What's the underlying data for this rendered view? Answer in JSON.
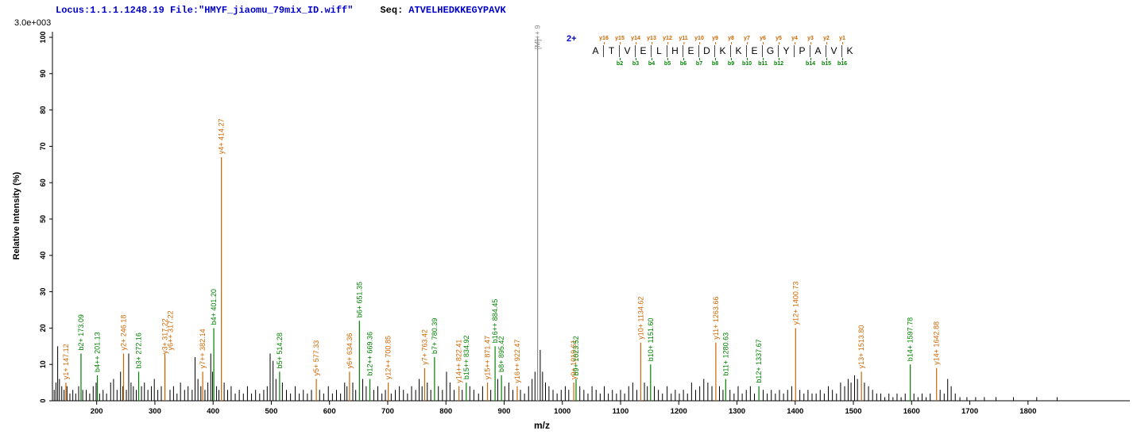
{
  "header": {
    "locus": "Locus:1.1.1.1248.19 File:\"HMYF_jiaomu_79mix_ID.wiff\"",
    "seq_label": "Seq:",
    "sequence": "ATVELHEDKKEGYPAVK",
    "max_intensity": "3.0e+003"
  },
  "peptide": {
    "charge": "2+",
    "residues": [
      "A",
      "T",
      "V",
      "E",
      "L",
      "H",
      "E",
      "D",
      "K",
      "K",
      "E",
      "G",
      "Y",
      "P",
      "A",
      "V",
      "K"
    ],
    "y_labels": [
      "y16",
      "y15",
      "y14",
      "y13",
      "y12",
      "y11",
      "y10",
      "y9",
      "y8",
      "y7",
      "y6",
      "y5",
      "y4",
      "y3",
      "y2",
      "y1"
    ],
    "b_labels": [
      "",
      "b2",
      "b3",
      "b4",
      "b5",
      "b6",
      "b7",
      "b8",
      "b9",
      "b10",
      "b11",
      "b12",
      "",
      "b14",
      "b15",
      "b16"
    ]
  },
  "chart_data": {
    "type": "bar",
    "title": "MS/MS fragment ion spectrum",
    "xlabel": "m/z",
    "ylabel": "Relative  Intensity  (%)",
    "xlim": [
      124,
      1975
    ],
    "ylim": [
      0,
      100
    ],
    "x_ticks": [
      200,
      300,
      400,
      500,
      600,
      700,
      800,
      900,
      1000,
      1100,
      1200,
      1300,
      1400,
      1500,
      1600,
      1700,
      1800
    ],
    "y_ticks": [
      0,
      10,
      20,
      30,
      40,
      50,
      60,
      70,
      80,
      90,
      100
    ],
    "legend": "none",
    "grid": false,
    "colors": {
      "y_ion": "#cc6600",
      "b_ion": "#008000",
      "precursor": "#8c8c8c",
      "unlabeled": "#000000"
    },
    "labeled_peaks": [
      {
        "mz": 147.12,
        "intensity": 5,
        "ion": "y",
        "label": "y1+ 147.12"
      },
      {
        "mz": 173.09,
        "intensity": 13,
        "ion": "b",
        "label": "b2+ 173.09"
      },
      {
        "mz": 201.13,
        "intensity": 7,
        "ion": "b",
        "label": "b4++ 201.13"
      },
      {
        "mz": 246.18,
        "intensity": 13,
        "ion": "y",
        "label": "y2+ 246.18"
      },
      {
        "mz": 272.16,
        "intensity": 8,
        "ion": "b",
        "label": "b3+ 272.16"
      },
      {
        "mz": 317.22,
        "intensity": 12,
        "ion": "y",
        "label": "y3+ 317.22"
      },
      {
        "mz": 317.22,
        "intensity": 13,
        "ion": "y",
        "label": "y6++ 317.22",
        "label_dx": 7
      },
      {
        "mz": 382.14,
        "intensity": 8,
        "ion": "y",
        "label": "y7++ 382.14"
      },
      {
        "mz": 401.2,
        "intensity": 20,
        "ion": "b",
        "label": "b4+ 401.20"
      },
      {
        "mz": 414.27,
        "intensity": 67,
        "ion": "y",
        "label": "y4+ 414.27"
      },
      {
        "mz": 514.28,
        "intensity": 8,
        "ion": "b",
        "label": "b5+ 514.28"
      },
      {
        "mz": 577.33,
        "intensity": 6,
        "ion": "y",
        "label": "y5+ 577.33"
      },
      {
        "mz": 634.36,
        "intensity": 8,
        "ion": "y",
        "label": "y6+ 634.36"
      },
      {
        "mz": 651.35,
        "intensity": 22,
        "ion": "b",
        "label": "b6+ 651.35"
      },
      {
        "mz": 669.36,
        "intensity": 6,
        "ion": "b",
        "label": "b12++ 669.36"
      },
      {
        "mz": 700.85,
        "intensity": 5,
        "ion": "y",
        "label": "y12++ 700.85"
      },
      {
        "mz": 763.42,
        "intensity": 9,
        "ion": "y",
        "label": "y7+ 763.42"
      },
      {
        "mz": 780.39,
        "intensity": 12,
        "ion": "b",
        "label": "b7+ 780.39"
      },
      {
        "mz": 822.41,
        "intensity": 4,
        "ion": "y",
        "label": "y14++ 822.41"
      },
      {
        "mz": 834.92,
        "intensity": 5,
        "ion": "b",
        "label": "b15++ 834.92"
      },
      {
        "mz": 871.47,
        "intensity": 5,
        "ion": "y",
        "label": "y15++ 871.47"
      },
      {
        "mz": 884.45,
        "intensity": 15,
        "ion": "b",
        "label": "b16++ 884.45"
      },
      {
        "mz": 895.42,
        "intensity": 7,
        "ion": "b",
        "label": "b8+ 895.42"
      },
      {
        "mz": 922.47,
        "intensity": 4,
        "ion": "y",
        "label": "y16++ 922.47"
      },
      {
        "mz": 957.5,
        "intensity": 100,
        "ion": "precursor",
        "label": "[M]++ 9"
      },
      {
        "mz": 1019.61,
        "intensity": 5,
        "ion": "y",
        "label": "y9+ 1019.61"
      },
      {
        "mz": 1023.52,
        "intensity": 6,
        "ion": "b",
        "label": "b9+ 1023.52"
      },
      {
        "mz": 1134.62,
        "intensity": 16,
        "ion": "y",
        "label": "y10+ 1134.62"
      },
      {
        "mz": 1151.6,
        "intensity": 10,
        "ion": "b",
        "label": "b10+ 1151.60"
      },
      {
        "mz": 1263.66,
        "intensity": 16,
        "ion": "y",
        "label": "y11+ 1263.66"
      },
      {
        "mz": 1280.63,
        "intensity": 6,
        "ion": "b",
        "label": "b11+ 1280.63"
      },
      {
        "mz": 1337.67,
        "intensity": 4,
        "ion": "b",
        "label": "b12+ 1337.67"
      },
      {
        "mz": 1400.73,
        "intensity": 20,
        "ion": "y",
        "label": "y12+ 1400.73"
      },
      {
        "mz": 1513.8,
        "intensity": 8,
        "ion": "y",
        "label": "y13+ 1513.80"
      },
      {
        "mz": 1597.78,
        "intensity": 10,
        "ion": "b",
        "label": "b14+ 1597.78"
      },
      {
        "mz": 1642.88,
        "intensity": 9,
        "ion": "y",
        "label": "y14+ 1642.88"
      }
    ],
    "unlabeled_peaks": [
      [
        127,
        3
      ],
      [
        130,
        5
      ],
      [
        133,
        15
      ],
      [
        136,
        6
      ],
      [
        140,
        4
      ],
      [
        144,
        3
      ],
      [
        149,
        4
      ],
      [
        154,
        2
      ],
      [
        159,
        3
      ],
      [
        164,
        2
      ],
      [
        169,
        4
      ],
      [
        176,
        3
      ],
      [
        182,
        3
      ],
      [
        188,
        2
      ],
      [
        194,
        4
      ],
      [
        199,
        5
      ],
      [
        205,
        2
      ],
      [
        211,
        3
      ],
      [
        217,
        2
      ],
      [
        224,
        5
      ],
      [
        229,
        6
      ],
      [
        235,
        3
      ],
      [
        241,
        8
      ],
      [
        245,
        4
      ],
      [
        251,
        3
      ],
      [
        255,
        13
      ],
      [
        259,
        5
      ],
      [
        263,
        4
      ],
      [
        268,
        3
      ],
      [
        277,
        4
      ],
      [
        282,
        5
      ],
      [
        288,
        3
      ],
      [
        294,
        4
      ],
      [
        299,
        6
      ],
      [
        305,
        3
      ],
      [
        311,
        4
      ],
      [
        326,
        3
      ],
      [
        332,
        4
      ],
      [
        338,
        2
      ],
      [
        344,
        5
      ],
      [
        351,
        3
      ],
      [
        357,
        4
      ],
      [
        364,
        3
      ],
      [
        369,
        12
      ],
      [
        374,
        6
      ],
      [
        379,
        4
      ],
      [
        386,
        3
      ],
      [
        391,
        5
      ],
      [
        396,
        13
      ],
      [
        399,
        8
      ],
      [
        406,
        4
      ],
      [
        410,
        3
      ],
      [
        419,
        5
      ],
      [
        425,
        3
      ],
      [
        431,
        4
      ],
      [
        438,
        2
      ],
      [
        445,
        3
      ],
      [
        452,
        2
      ],
      [
        459,
        4
      ],
      [
        466,
        2
      ],
      [
        473,
        3
      ],
      [
        480,
        2
      ],
      [
        487,
        3
      ],
      [
        493,
        4
      ],
      [
        498,
        13
      ],
      [
        503,
        11
      ],
      [
        508,
        6
      ],
      [
        519,
        5
      ],
      [
        526,
        3
      ],
      [
        533,
        2
      ],
      [
        541,
        4
      ],
      [
        548,
        2
      ],
      [
        555,
        3
      ],
      [
        562,
        2
      ],
      [
        569,
        3
      ],
      [
        583,
        3
      ],
      [
        590,
        2
      ],
      [
        598,
        4
      ],
      [
        605,
        2
      ],
      [
        612,
        3
      ],
      [
        619,
        2
      ],
      [
        626,
        5
      ],
      [
        630,
        4
      ],
      [
        640,
        5
      ],
      [
        645,
        3
      ],
      [
        657,
        6
      ],
      [
        663,
        4
      ],
      [
        676,
        3
      ],
      [
        683,
        4
      ],
      [
        690,
        2
      ],
      [
        696,
        3
      ],
      [
        706,
        2
      ],
      [
        713,
        3
      ],
      [
        720,
        4
      ],
      [
        727,
        3
      ],
      [
        734,
        2
      ],
      [
        741,
        4
      ],
      [
        748,
        3
      ],
      [
        754,
        6
      ],
      [
        759,
        4
      ],
      [
        768,
        5
      ],
      [
        774,
        3
      ],
      [
        787,
        4
      ],
      [
        794,
        3
      ],
      [
        801,
        8
      ],
      [
        807,
        5
      ],
      [
        814,
        3
      ],
      [
        828,
        3
      ],
      [
        841,
        4
      ],
      [
        848,
        3
      ],
      [
        856,
        2
      ],
      [
        863,
        4
      ],
      [
        877,
        3
      ],
      [
        889,
        6
      ],
      [
        901,
        4
      ],
      [
        908,
        5
      ],
      [
        915,
        3
      ],
      [
        928,
        3
      ],
      [
        935,
        2
      ],
      [
        942,
        4
      ],
      [
        948,
        6
      ],
      [
        953,
        8
      ],
      [
        962,
        14
      ],
      [
        966,
        8
      ],
      [
        971,
        5
      ],
      [
        977,
        4
      ],
      [
        984,
        3
      ],
      [
        991,
        2
      ],
      [
        998,
        3
      ],
      [
        1005,
        4
      ],
      [
        1011,
        3
      ],
      [
        1030,
        4
      ],
      [
        1037,
        3
      ],
      [
        1044,
        2
      ],
      [
        1051,
        4
      ],
      [
        1058,
        3
      ],
      [
        1065,
        2
      ],
      [
        1072,
        4
      ],
      [
        1079,
        2
      ],
      [
        1086,
        3
      ],
      [
        1093,
        2
      ],
      [
        1100,
        3
      ],
      [
        1107,
        2
      ],
      [
        1114,
        4
      ],
      [
        1121,
        5
      ],
      [
        1128,
        3
      ],
      [
        1141,
        5
      ],
      [
        1146,
        4
      ],
      [
        1158,
        4
      ],
      [
        1165,
        3
      ],
      [
        1172,
        2
      ],
      [
        1180,
        4
      ],
      [
        1187,
        2
      ],
      [
        1194,
        3
      ],
      [
        1201,
        2
      ],
      [
        1208,
        3
      ],
      [
        1215,
        2
      ],
      [
        1222,
        5
      ],
      [
        1229,
        3
      ],
      [
        1236,
        4
      ],
      [
        1243,
        6
      ],
      [
        1250,
        5
      ],
      [
        1257,
        4
      ],
      [
        1270,
        4
      ],
      [
        1276,
        3
      ],
      [
        1288,
        3
      ],
      [
        1295,
        2
      ],
      [
        1302,
        4
      ],
      [
        1309,
        2
      ],
      [
        1316,
        3
      ],
      [
        1323,
        4
      ],
      [
        1330,
        2
      ],
      [
        1345,
        3
      ],
      [
        1352,
        2
      ],
      [
        1359,
        3
      ],
      [
        1366,
        2
      ],
      [
        1373,
        3
      ],
      [
        1380,
        2
      ],
      [
        1387,
        3
      ],
      [
        1394,
        4
      ],
      [
        1408,
        3
      ],
      [
        1415,
        2
      ],
      [
        1422,
        3
      ],
      [
        1429,
        2
      ],
      [
        1436,
        2
      ],
      [
        1443,
        3
      ],
      [
        1450,
        2
      ],
      [
        1457,
        4
      ],
      [
        1464,
        3
      ],
      [
        1471,
        2
      ],
      [
        1478,
        5
      ],
      [
        1485,
        4
      ],
      [
        1491,
        6
      ],
      [
        1496,
        5
      ],
      [
        1502,
        7
      ],
      [
        1507,
        6
      ],
      [
        1519,
        5
      ],
      [
        1526,
        4
      ],
      [
        1533,
        3
      ],
      [
        1540,
        2
      ],
      [
        1547,
        2
      ],
      [
        1554,
        1
      ],
      [
        1561,
        2
      ],
      [
        1568,
        1
      ],
      [
        1575,
        2
      ],
      [
        1582,
        1
      ],
      [
        1589,
        2
      ],
      [
        1604,
        2
      ],
      [
        1611,
        1
      ],
      [
        1618,
        2
      ],
      [
        1625,
        1
      ],
      [
        1632,
        2
      ],
      [
        1649,
        3
      ],
      [
        1656,
        2
      ],
      [
        1662,
        6
      ],
      [
        1668,
        4
      ],
      [
        1675,
        2
      ],
      [
        1683,
        1
      ],
      [
        1695,
        1
      ],
      [
        1710,
        1
      ],
      [
        1725,
        1
      ],
      [
        1745,
        1
      ],
      [
        1775,
        1
      ],
      [
        1815,
        1
      ],
      [
        1850,
        1
      ]
    ]
  }
}
